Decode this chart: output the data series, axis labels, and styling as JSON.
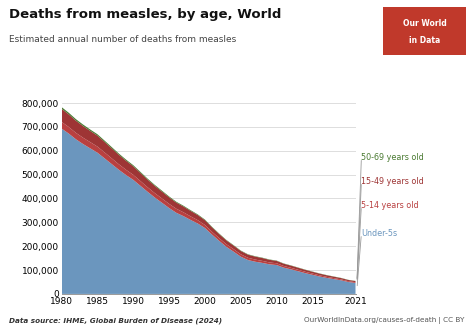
{
  "title": "Deaths from measles, by age, World",
  "subtitle": "Estimated annual number of deaths from measles",
  "source_left": "Data source: IHME, Global Burden of Disease (2024)",
  "source_right": "OurWorldInData.org/causes-of-death | CC BY",
  "years": [
    1980,
    1981,
    1982,
    1983,
    1984,
    1985,
    1986,
    1987,
    1988,
    1989,
    1990,
    1991,
    1992,
    1993,
    1994,
    1995,
    1996,
    1997,
    1998,
    1999,
    2000,
    2001,
    2002,
    2003,
    2004,
    2005,
    2006,
    2007,
    2008,
    2009,
    2010,
    2011,
    2012,
    2013,
    2014,
    2015,
    2016,
    2017,
    2018,
    2019,
    2020,
    2021
  ],
  "under5": [
    693000,
    672000,
    648000,
    628000,
    610000,
    592000,
    568000,
    544000,
    520000,
    498000,
    478000,
    453000,
    428000,
    404000,
    382000,
    360000,
    340000,
    326000,
    310000,
    295000,
    276000,
    248000,
    222000,
    197000,
    177000,
    156000,
    142000,
    135000,
    130000,
    124000,
    121000,
    110000,
    103000,
    95000,
    87000,
    80000,
    73000,
    67000,
    62000,
    57000,
    50000,
    46000
  ],
  "age5_14": [
    28000,
    27500,
    27000,
    26500,
    26000,
    25500,
    25000,
    24000,
    23000,
    22000,
    21000,
    20000,
    19000,
    18500,
    18000,
    17500,
    17000,
    16000,
    15000,
    14000,
    13000,
    12000,
    11500,
    11000,
    10500,
    10000,
    9500,
    9000,
    8500,
    8000,
    7500,
    7000,
    6500,
    6200,
    5800,
    5400,
    5000,
    4600,
    4200,
    3800,
    3400,
    3200
  ],
  "age15_49": [
    55000,
    53000,
    51000,
    49000,
    47000,
    46000,
    44000,
    42000,
    40000,
    38000,
    36000,
    34000,
    32000,
    30500,
    29000,
    27500,
    26000,
    24500,
    23000,
    21500,
    20000,
    18500,
    17000,
    16000,
    15000,
    14000,
    13000,
    12500,
    12000,
    11000,
    10000,
    9500,
    9000,
    8500,
    8000,
    7500,
    7000,
    6500,
    6000,
    5500,
    5000,
    4700
  ],
  "age50_69": [
    7000,
    6800,
    6500,
    6300,
    6000,
    5800,
    5500,
    5300,
    5000,
    4800,
    4600,
    4400,
    4200,
    4000,
    3800,
    3600,
    3400,
    3200,
    3000,
    2800,
    2600,
    2400,
    2200,
    2000,
    1900,
    1800,
    1700,
    1600,
    1500,
    1400,
    1300,
    1200,
    1100,
    1050,
    1000,
    950,
    900,
    850,
    800,
    750,
    700,
    650
  ],
  "color_under5": "#6b96be",
  "color_5_14": "#b94040",
  "color_15_49": "#9e3535",
  "color_50_69": "#4a7a32",
  "background_color": "#ffffff",
  "ylim": [
    0,
    840000
  ],
  "yticks": [
    0,
    100000,
    200000,
    300000,
    400000,
    500000,
    600000,
    700000,
    800000
  ],
  "xticks": [
    1980,
    1985,
    1990,
    1995,
    2000,
    2005,
    2010,
    2015,
    2021
  ],
  "legend_labels": [
    "50-69 years old",
    "15-49 years old",
    "5-14 years old",
    "Under-5s"
  ],
  "legend_colors": [
    "#4a7a32",
    "#9e3535",
    "#b94040",
    "#6b96be"
  ]
}
